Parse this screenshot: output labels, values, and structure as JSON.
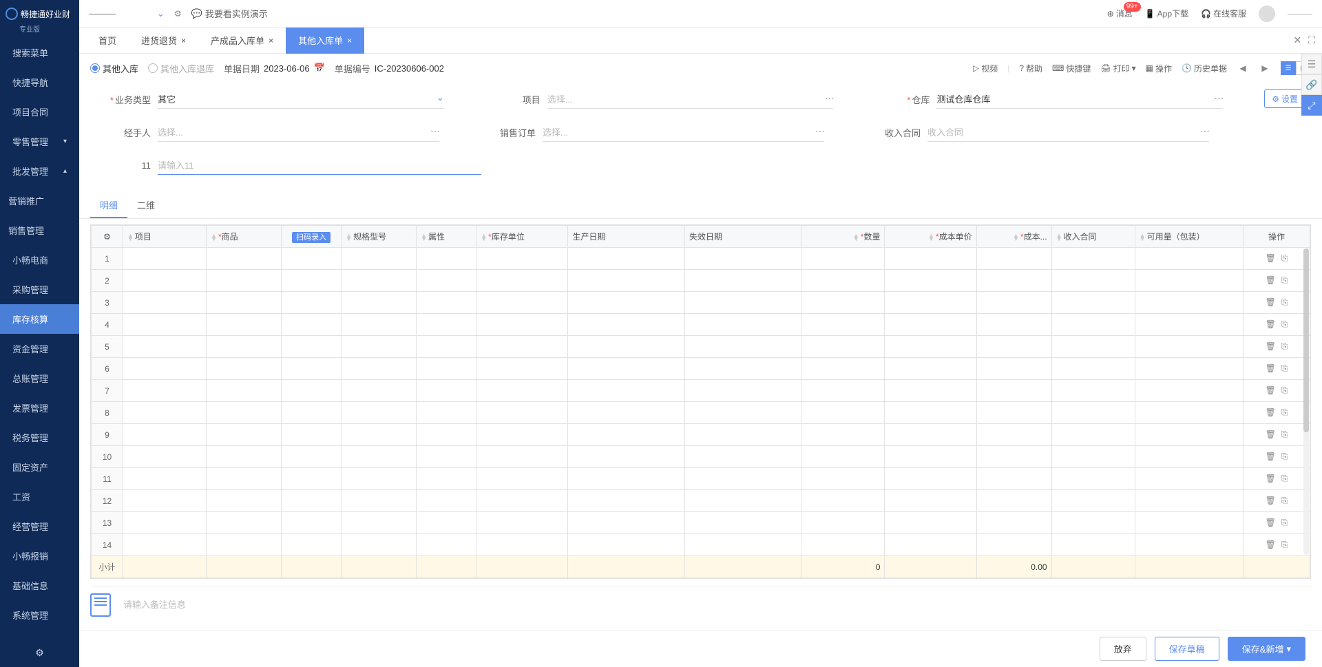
{
  "brand": {
    "name": "畅捷通好业财",
    "edition": "专业版"
  },
  "topbar": {
    "org": "———",
    "demo": "我要看实例演示",
    "msg": "消息",
    "msg_badge": "99+",
    "app": "App下载",
    "service": "在线客服"
  },
  "sidebar": {
    "searchMenu": "搜索菜单",
    "quickNav": "快捷导航",
    "items": [
      {
        "label": "项目合同"
      },
      {
        "label": "零售管理",
        "arrow": "▾"
      },
      {
        "label": "批发管理",
        "arrow": "▴",
        "expanded": true,
        "children": [
          {
            "label": "营销推广"
          },
          {
            "label": "销售管理"
          }
        ]
      },
      {
        "label": "小畅电商"
      },
      {
        "label": "采购管理"
      },
      {
        "label": "库存核算",
        "active": true
      },
      {
        "label": "资金管理"
      },
      {
        "label": "总账管理"
      },
      {
        "label": "发票管理"
      },
      {
        "label": "税务管理"
      },
      {
        "label": "固定资产"
      },
      {
        "label": "工资"
      },
      {
        "label": "经营管理"
      },
      {
        "label": "小畅报销"
      },
      {
        "label": "基础信息"
      },
      {
        "label": "系统管理"
      }
    ]
  },
  "tabs": [
    {
      "label": "首页",
      "closable": false
    },
    {
      "label": "进货退货",
      "closable": true
    },
    {
      "label": "产成品入库单",
      "closable": true
    },
    {
      "label": "其他入库单",
      "closable": true,
      "active": true
    }
  ],
  "formToolbar": {
    "radio1": "其他入库",
    "radio2": "其他入库退库",
    "dateLabel": "单据日期",
    "dateValue": "2023-06-06",
    "docNoLabel": "单据编号",
    "docNoValue": "IC-20230606-002",
    "video": "视频",
    "help": "帮助",
    "shortcut": "快捷键",
    "print": "打印",
    "operate": "操作",
    "history": "历史单据"
  },
  "form": {
    "bizType": {
      "label": "业务类型",
      "value": "其它",
      "required": true
    },
    "project": {
      "label": "项目",
      "placeholder": "选择..."
    },
    "warehouse": {
      "label": "仓库",
      "value": "测试仓库仓库",
      "required": true
    },
    "handler": {
      "label": "经手人",
      "placeholder": "选择..."
    },
    "salesOrder": {
      "label": "销售订单",
      "placeholder": "选择..."
    },
    "incomeContract": {
      "label": "收入合同",
      "placeholder": "收入合同"
    },
    "eleven": {
      "label": "11",
      "placeholder": "请输入11"
    },
    "settingsBtn": "设置"
  },
  "subtabs": {
    "detail": "明细",
    "dual": "二维"
  },
  "table": {
    "scanBtn": "扫码录入",
    "cols": {
      "project": "项目",
      "product": "商品",
      "spec": "规格型号",
      "attr": "属性",
      "unit": "库存单位",
      "prodDate": "生产日期",
      "expDate": "失效日期",
      "qty": "数量",
      "unitCost": "成本单价",
      "cost": "成本...",
      "contract": "收入合同",
      "avail": "可用量（包装）",
      "ops": "操作"
    },
    "rowCount": 14,
    "subtotal": {
      "label": "小计",
      "qty": "0",
      "cost": "0.00"
    }
  },
  "remarks": {
    "placeholder": "请输入备注信息"
  },
  "footer": {
    "discard": "放弃",
    "saveDraft": "保存草稿",
    "saveNew": "保存&新增"
  }
}
